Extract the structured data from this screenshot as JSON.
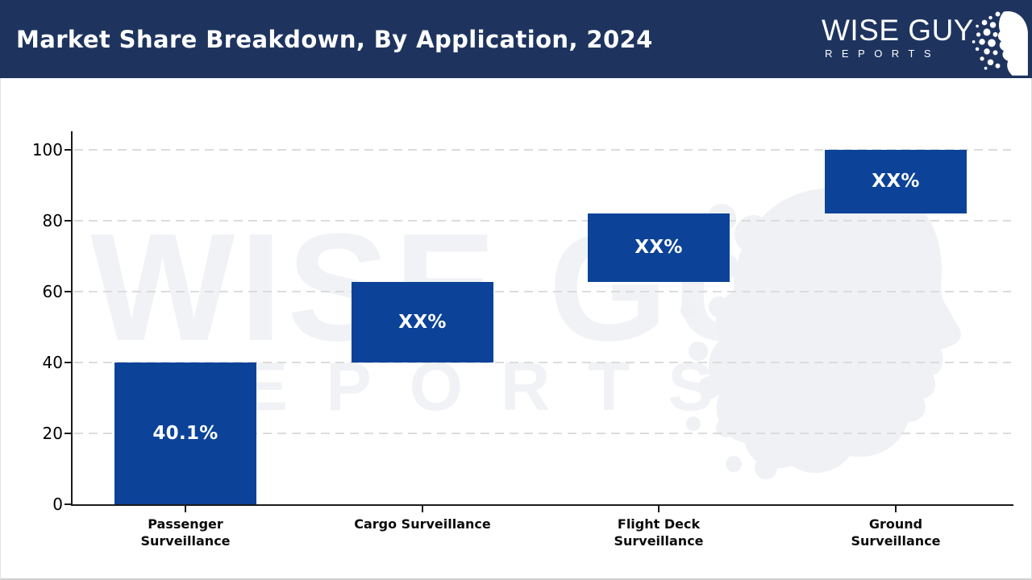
{
  "header": {
    "title": "Market Share Breakdown, By Application, 2024",
    "logo": {
      "line1": "WISE GUY",
      "line2": "REPORTS"
    }
  },
  "watermark": {
    "line1": "WISE GUY",
    "line2": "REPORTS"
  },
  "chart_data": {
    "type": "bar",
    "subtype": "waterfall",
    "title": "Market Share Breakdown, By Application, 2024",
    "categories": [
      "Passenger Surveillance",
      "Cargo Surveillance",
      "Flight Deck Surveillance",
      "Ground Surveillance"
    ],
    "category_lines": [
      [
        "Passenger",
        "Surveillance"
      ],
      [
        "Cargo Surveillance"
      ],
      [
        "Flight Deck",
        "Surveillance"
      ],
      [
        "Ground",
        "Surveillance"
      ]
    ],
    "series": [
      {
        "name": "Market share (%)",
        "segments": [
          {
            "category": "Passenger Surveillance",
            "start": 0,
            "end": 40.1,
            "label": "40.1%"
          },
          {
            "category": "Cargo Surveillance",
            "start": 40.1,
            "end": 62.7,
            "label": "XX%"
          },
          {
            "category": "Flight Deck Surveillance",
            "start": 62.7,
            "end": 82.1,
            "label": "XX%"
          },
          {
            "category": "Ground Surveillance",
            "start": 82.1,
            "end": 100,
            "label": "XX%"
          }
        ]
      }
    ],
    "xlabel": "",
    "ylabel": "",
    "ylim": [
      0,
      100
    ],
    "yticks": [
      0,
      20,
      40,
      60,
      80,
      100
    ],
    "grid": "horizontal-dashed",
    "legend": "none",
    "bar_color": "#0c4398",
    "bar_label_color": "#ffffff"
  },
  "colors": {
    "header_bg": "#1e345f",
    "bar": "#0c4398",
    "axis": "#1a1a1a",
    "gridline": "#dcdcdc",
    "watermark": "#f1f2f5"
  }
}
